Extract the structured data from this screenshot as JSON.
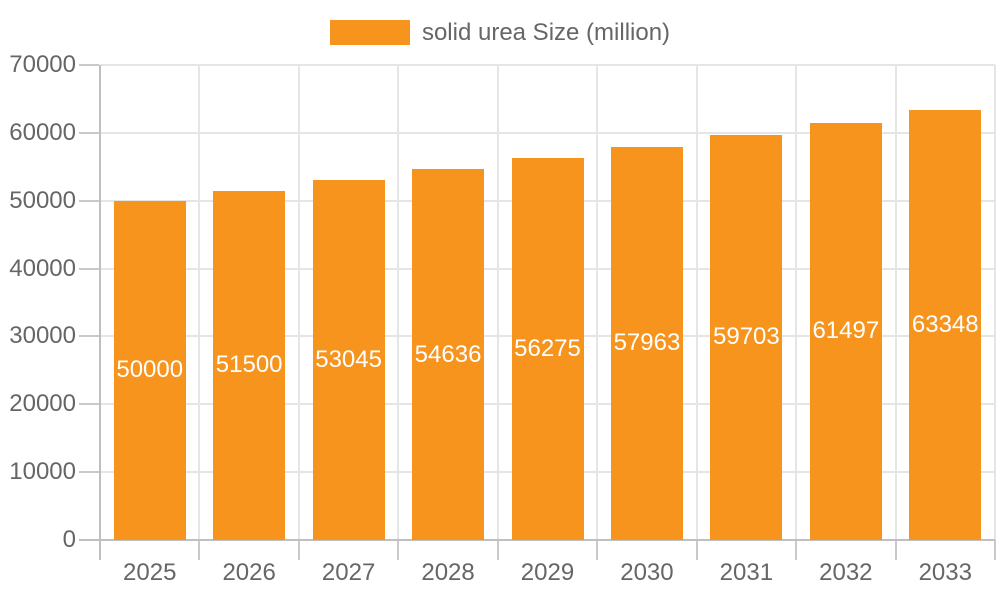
{
  "colors": {
    "bar": "#f7941e",
    "axis_text": "#666666",
    "grid_line": "#e5e5e5",
    "axis_line": "#bfbfbf",
    "tick_line": "#c9c9c9",
    "value_label": "#ffffff",
    "background": "#ffffff"
  },
  "chart_data": {
    "type": "bar",
    "title": "",
    "categories": [
      "2025",
      "2026",
      "2027",
      "2028",
      "2029",
      "2030",
      "2031",
      "2032",
      "2033"
    ],
    "series": [
      {
        "name": "solid urea Size (million)",
        "color": "#f7941e",
        "values": [
          50000,
          51500,
          53045,
          54636,
          56275,
          57963,
          59703,
          61497,
          63348
        ]
      }
    ],
    "xlabel": "",
    "ylabel": "",
    "ylim": [
      0,
      70000
    ],
    "yticks": [
      0,
      10000,
      20000,
      30000,
      40000,
      50000,
      60000,
      70000
    ],
    "grid": "both",
    "legend_position": "top-center",
    "bar_value_labels": "centered-white"
  }
}
